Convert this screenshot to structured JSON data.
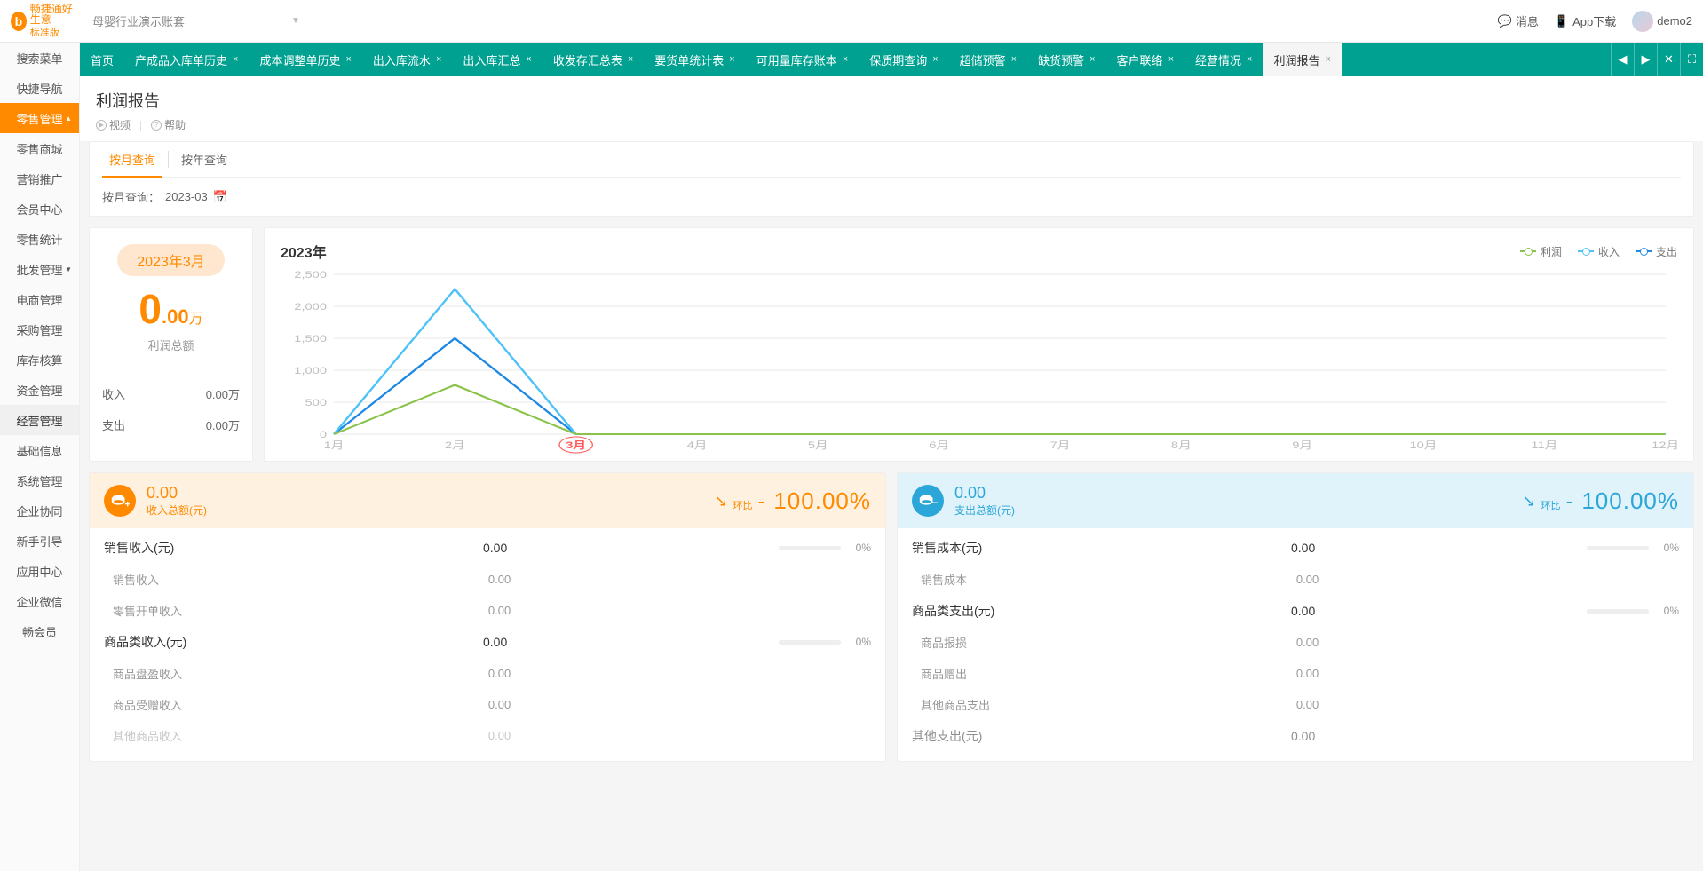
{
  "top": {
    "logo_text": "畅捷通好生意",
    "logo_sub": "标准版",
    "account": "母婴行业演示账套",
    "msg": "消息",
    "app": "App下载",
    "user": "demo2"
  },
  "sidebar": {
    "items": [
      {
        "label": "搜索菜单"
      },
      {
        "label": "快捷导航"
      },
      {
        "label": "零售管理",
        "active": true,
        "expand": true
      },
      {
        "label": "零售商城",
        "sub": true
      },
      {
        "label": "营销推广",
        "sub": true
      },
      {
        "label": "会员中心",
        "sub": true
      },
      {
        "label": "零售统计",
        "sub": true
      },
      {
        "label": "批发管理",
        "expand": true
      },
      {
        "label": "电商管理"
      },
      {
        "label": "采购管理"
      },
      {
        "label": "库存核算"
      },
      {
        "label": "资金管理"
      },
      {
        "label": "经营管理",
        "subactive": true
      },
      {
        "label": "基础信息"
      },
      {
        "label": "系统管理"
      },
      {
        "label": "企业协同"
      },
      {
        "label": "新手引导"
      },
      {
        "label": "应用中心"
      },
      {
        "label": "企业微信"
      },
      {
        "label": "畅会员"
      }
    ]
  },
  "tabs": {
    "items": [
      {
        "label": "首页",
        "closable": false
      },
      {
        "label": "产成品入库单历史",
        "closable": true
      },
      {
        "label": "成本调整单历史",
        "closable": true
      },
      {
        "label": "出入库流水",
        "closable": true
      },
      {
        "label": "出入库汇总",
        "closable": true
      },
      {
        "label": "收发存汇总表",
        "closable": true
      },
      {
        "label": "要货单统计表",
        "closable": true
      },
      {
        "label": "可用量库存账本",
        "closable": true
      },
      {
        "label": "保质期查询",
        "closable": true
      },
      {
        "label": "超储预警",
        "closable": true
      },
      {
        "label": "缺货预警",
        "closable": true
      },
      {
        "label": "客户联络",
        "closable": true
      },
      {
        "label": "经营情况",
        "closable": true
      },
      {
        "label": "利润报告",
        "closable": true,
        "active": true
      }
    ]
  },
  "page": {
    "title": "利润报告",
    "help_video": "视频",
    "help_help": "帮助",
    "qtabs": {
      "monthly": "按月查询",
      "yearly": "按年查询"
    },
    "qlabel": "按月查询：",
    "qvalue": "2023-03"
  },
  "summary": {
    "month_pill": "2023年3月",
    "big_int": "0",
    "big_dec": ".00",
    "big_unit": "万",
    "profit_label": "利润总额",
    "income_label": "收入",
    "income_value": "0.00万",
    "expense_label": "支出",
    "expense_value": "0.00万"
  },
  "chart": {
    "title": "2023年",
    "legend": {
      "profit": "利润",
      "income": "收入",
      "expense": "支出"
    },
    "colors": {
      "profit": "#8bc34a",
      "income": "#4fc3f7",
      "expense": "#1e88e5",
      "grid": "#e9e9e9",
      "axis_text": "#bdbdbd",
      "highlight": "#ff5a5a"
    },
    "x_labels": [
      "1月",
      "2月",
      "3月",
      "4月",
      "5月",
      "6月",
      "7月",
      "8月",
      "9月",
      "10月",
      "11月",
      "12月"
    ],
    "y_ticks": [
      0,
      500,
      1000,
      1500,
      2000,
      2500
    ],
    "y_tick_labels": [
      "0",
      "500",
      "1,000",
      "1,500",
      "2,000",
      "2,500"
    ],
    "y_max": 2500,
    "highlight_x_index": 2,
    "series": {
      "profit": [
        0,
        770,
        0,
        0,
        0,
        0,
        0,
        0,
        0,
        0,
        0,
        0
      ],
      "income": [
        0,
        2270,
        0,
        0,
        0,
        0,
        0,
        0,
        0,
        0,
        0,
        0
      ],
      "expense": [
        0,
        1500,
        0,
        0,
        0,
        0,
        0,
        0,
        0,
        0,
        0,
        0
      ]
    }
  },
  "income_card": {
    "head_value": "0.00",
    "head_label": "收入总额(元)",
    "hb_label": "环比",
    "hb_pct": "- 100.00%",
    "rows": [
      {
        "name": "销售收入(元)",
        "value": "0.00",
        "section": true,
        "bar": true,
        "pct": "0%"
      },
      {
        "name": "销售收入",
        "value": "0.00"
      },
      {
        "name": "零售开单收入",
        "value": "0.00"
      },
      {
        "name": "商品类收入(元)",
        "value": "0.00",
        "section": true,
        "bar": true,
        "pct": "0%"
      },
      {
        "name": "商品盘盈收入",
        "value": "0.00"
      },
      {
        "name": "商品受赠收入",
        "value": "0.00"
      },
      {
        "name": "其他商品收入",
        "value": "0.00",
        "faded": true
      }
    ]
  },
  "expense_card": {
    "head_value": "0.00",
    "head_label": "支出总额(元)",
    "hb_label": "环比",
    "hb_pct": "- 100.00%",
    "rows": [
      {
        "name": "销售成本(元)",
        "value": "0.00",
        "section": true,
        "bar": true,
        "pct": "0%"
      },
      {
        "name": "销售成本",
        "value": "0.00"
      },
      {
        "name": "商品类支出(元)",
        "value": "0.00",
        "section": true,
        "bar": true,
        "pct": "0%"
      },
      {
        "name": "商品报损",
        "value": "0.00"
      },
      {
        "name": "商品赠出",
        "value": "0.00"
      },
      {
        "name": "其他商品支出",
        "value": "0.00"
      },
      {
        "name": "其他支出(元)",
        "value": "0.00",
        "section": true,
        "faded": true
      }
    ]
  }
}
